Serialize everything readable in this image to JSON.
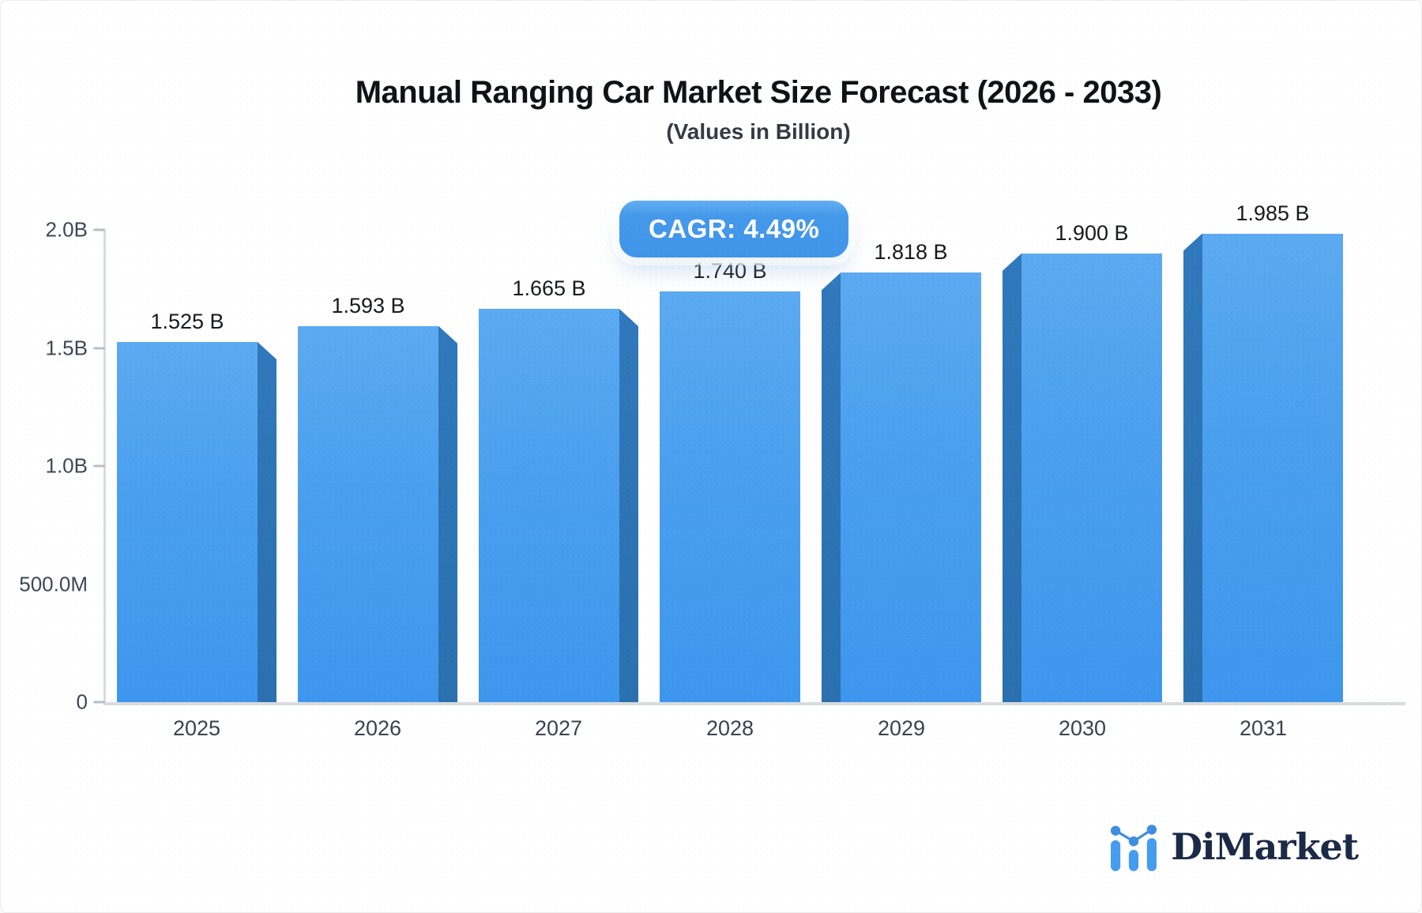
{
  "title": "Manual Ranging Car Market Size Forecast (2026 - 2033)",
  "subtitle": "(Values in Billion)",
  "badge": {
    "label": "CAGR: 4.49%"
  },
  "chart_data": {
    "type": "bar",
    "title": "Manual Ranging Car Market Size Forecast (2026 - 2033)",
    "subtitle": "(Values in Billion)",
    "unit": "Billion",
    "categories": [
      "2025",
      "2026",
      "2027",
      "2028",
      "2029",
      "2030",
      "2031"
    ],
    "values": [
      1.525,
      1.593,
      1.665,
      1.74,
      1.818,
      1.9,
      1.985
    ],
    "value_labels": [
      "1.525 B",
      "1.593 B",
      "1.665 B",
      "1.740 B",
      "1.818 B",
      "1.900 B",
      "1.985 B"
    ],
    "cagr": "4.49%",
    "ylim": [
      0,
      2.0
    ],
    "yticks": [
      {
        "label": "2.0B",
        "value": 2.0,
        "dash": true
      },
      {
        "label": "1.5B",
        "value": 1.5,
        "dash": true
      },
      {
        "label": "1.0B",
        "value": 1.0,
        "dash": true
      },
      {
        "label": "500.0M",
        "value": 0.5,
        "dash": false
      },
      {
        "label": "0",
        "value": 0,
        "dash": true
      }
    ],
    "grid": false,
    "legend_position": "none",
    "bar_face_color": "#459eee",
    "bar_side_color": "#2e74b5",
    "axis_line_color": "#d8dce0"
  },
  "logo": {
    "text": "DiMarket",
    "icon": "bar-chart-logo-icon",
    "accent_color": "#459cf0"
  }
}
